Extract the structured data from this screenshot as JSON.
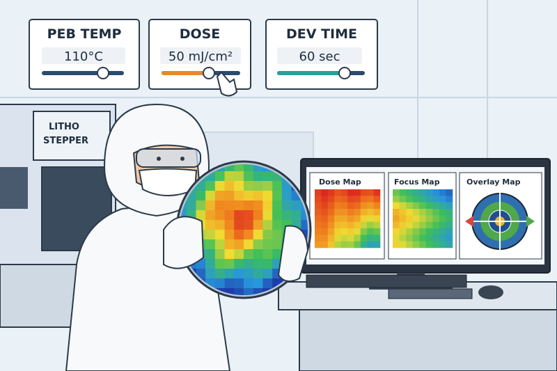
{
  "controls": [
    {
      "label": "PEB TEMP",
      "value": "110°C"
    },
    {
      "label": "DOSE",
      "value": "50 mJ/cm²"
    },
    {
      "label": "DEV TIME",
      "value": "60 sec"
    }
  ],
  "machine": {
    "label_lines": [
      "LITHO",
      "STEPPER"
    ]
  },
  "monitor": {
    "panels": [
      "Dose Map",
      "Focus Map",
      "Overlay Map"
    ]
  }
}
